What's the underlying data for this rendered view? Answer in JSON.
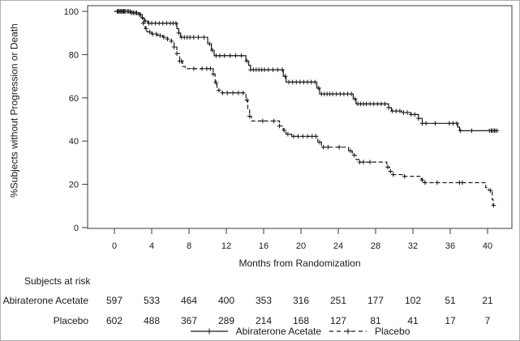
{
  "figure": {
    "y_axis_label": "%Subjects without Progression or Death",
    "x_axis_label": "Months from Randomization"
  },
  "colors": {
    "line": "#1a1a1a",
    "frame": "#3a3a3a",
    "text": "#1a1a1a",
    "background": "#ffffff"
  },
  "chart_data": {
    "type": "line",
    "subtype": "kaplan-meier-step",
    "title": "",
    "xlabel": "Months from Randomization",
    "ylabel": "%Subjects without Progression or Death",
    "xlim": [
      0,
      42.5
    ],
    "ylim": [
      0,
      100
    ],
    "xticks": [
      0,
      4,
      8,
      12,
      16,
      20,
      24,
      28,
      32,
      36,
      40
    ],
    "yticks": [
      0,
      20,
      40,
      60,
      80,
      100
    ],
    "grid": false,
    "legend_position": "bottom",
    "series": [
      {
        "name": "Abiraterone Acetate",
        "line": "solid",
        "marker": "+",
        "start_value": 100,
        "end_time": 41.1,
        "steps": [
          [
            1.8,
            99.3
          ],
          [
            2.6,
            98.5
          ],
          [
            3.0,
            97.0
          ],
          [
            3.2,
            95.5
          ],
          [
            3.6,
            94.5
          ],
          [
            6.7,
            92.0
          ],
          [
            6.9,
            90.0
          ],
          [
            7.1,
            88.0
          ],
          [
            10.0,
            85.0
          ],
          [
            10.4,
            82.0
          ],
          [
            10.7,
            79.5
          ],
          [
            14.1,
            77.0
          ],
          [
            14.4,
            75.0
          ],
          [
            14.6,
            73.0
          ],
          [
            18.1,
            70.0
          ],
          [
            18.4,
            67.3
          ],
          [
            21.7,
            64.5
          ],
          [
            22.0,
            61.8
          ],
          [
            25.6,
            59.5
          ],
          [
            25.9,
            57.2
          ],
          [
            29.4,
            55.5
          ],
          [
            29.7,
            53.9
          ],
          [
            30.8,
            53.2
          ],
          [
            31.8,
            52.3
          ],
          [
            32.6,
            50.5
          ],
          [
            33.0,
            48.2
          ],
          [
            36.8,
            46.5
          ],
          [
            37.0,
            44.8
          ]
        ],
        "censor_marks": [
          0.3,
          0.5,
          0.7,
          0.9,
          1.1,
          1.4,
          1.7,
          2.0,
          2.3,
          2.7,
          3.0,
          3.3,
          3.7,
          4.0,
          4.4,
          4.8,
          5.2,
          5.6,
          6.0,
          6.3,
          6.6,
          6.9,
          7.2,
          7.5,
          7.8,
          8.1,
          8.5,
          9.0,
          9.6,
          10.2,
          10.5,
          10.9,
          11.3,
          11.8,
          12.4,
          13.0,
          13.6,
          14.2,
          14.6,
          14.9,
          15.2,
          15.5,
          15.8,
          16.1,
          16.5,
          17.0,
          17.5,
          18.0,
          18.3,
          18.7,
          19.1,
          19.5,
          19.9,
          20.3,
          20.7,
          21.1,
          21.5,
          21.9,
          22.2,
          22.5,
          22.8,
          23.1,
          23.4,
          23.8,
          24.2,
          24.6,
          25.0,
          25.4,
          25.8,
          26.1,
          26.4,
          26.7,
          27.0,
          27.4,
          27.8,
          28.2,
          28.6,
          29.0,
          29.4,
          29.8,
          30.2,
          30.6,
          31.0,
          31.4,
          31.8,
          32.2,
          32.6,
          33.0,
          33.4,
          34.4,
          35.9,
          36.3,
          36.7,
          37.1,
          38.3,
          40.2,
          40.4,
          40.5,
          40.7,
          40.8,
          41.0
        ]
      },
      {
        "name": "Placebo",
        "line": "dashed",
        "marker": "+",
        "start_value": 100,
        "end_time": 40.7,
        "steps": [
          [
            1.8,
            99.3
          ],
          [
            2.6,
            98.5
          ],
          [
            2.9,
            97.0
          ],
          [
            3.1,
            94.5
          ],
          [
            3.3,
            92.0
          ],
          [
            3.5,
            90.5
          ],
          [
            4.0,
            89.5
          ],
          [
            4.6,
            88.8
          ],
          [
            5.2,
            88.0
          ],
          [
            5.7,
            87.2
          ],
          [
            6.1,
            86.2
          ],
          [
            6.4,
            83.5
          ],
          [
            6.7,
            80.5
          ],
          [
            7.0,
            77.0
          ],
          [
            7.3,
            74.5
          ],
          [
            7.6,
            73.5
          ],
          [
            10.6,
            71.0
          ],
          [
            10.8,
            67.0
          ],
          [
            11.0,
            63.5
          ],
          [
            11.5,
            62.3
          ],
          [
            14.1,
            59.0
          ],
          [
            14.3,
            55.0
          ],
          [
            14.5,
            51.5
          ],
          [
            14.7,
            49.3
          ],
          [
            17.7,
            47.0
          ],
          [
            18.1,
            45.0
          ],
          [
            18.4,
            43.2
          ],
          [
            19.0,
            42.2
          ],
          [
            21.8,
            39.5
          ],
          [
            22.2,
            37.2
          ],
          [
            25.1,
            35.5
          ],
          [
            25.5,
            33.5
          ],
          [
            25.9,
            31.5
          ],
          [
            26.2,
            30.3
          ],
          [
            29.2,
            28.0
          ],
          [
            29.5,
            26.0
          ],
          [
            29.8,
            24.5
          ],
          [
            31.1,
            23.7
          ],
          [
            32.9,
            22.0
          ],
          [
            33.2,
            20.8
          ],
          [
            39.8,
            18.5
          ],
          [
            40.1,
            17.2
          ],
          [
            40.5,
            13.0
          ],
          [
            40.6,
            10.3
          ]
        ],
        "censor_marks": [
          0.4,
          0.6,
          0.8,
          1.0,
          1.2,
          1.5,
          1.8,
          2.1,
          2.4,
          2.8,
          3.1,
          3.4,
          3.8,
          4.1,
          4.5,
          4.9,
          5.3,
          5.7,
          6.1,
          6.4,
          6.7,
          7.0,
          7.2,
          8.5,
          9.4,
          9.9,
          10.3,
          10.6,
          10.9,
          11.2,
          11.6,
          12.1,
          12.7,
          13.3,
          13.8,
          14.2,
          14.5,
          15.9,
          17.1,
          17.7,
          18.2,
          18.6,
          19.2,
          19.7,
          20.2,
          20.7,
          21.2,
          21.6,
          22.0,
          22.4,
          22.9,
          24.1,
          25.3,
          25.7,
          26.3,
          26.7,
          27.4,
          29.3,
          29.6,
          29.9,
          31.1,
          33.0,
          33.3,
          34.6,
          37.0,
          37.3,
          40.3,
          40.65
        ]
      }
    ],
    "risk_table": {
      "title": "Subjects at risk",
      "time_points": [
        0,
        4,
        8,
        12,
        16,
        20,
        24,
        28,
        32,
        36,
        40
      ],
      "rows": [
        {
          "label": "Abiraterone Acetate",
          "counts": [
            597,
            533,
            464,
            400,
            353,
            316,
            251,
            177,
            102,
            51,
            21
          ]
        },
        {
          "label": "Placebo",
          "counts": [
            602,
            488,
            367,
            289,
            214,
            168,
            127,
            81,
            41,
            17,
            7
          ]
        }
      ]
    }
  }
}
